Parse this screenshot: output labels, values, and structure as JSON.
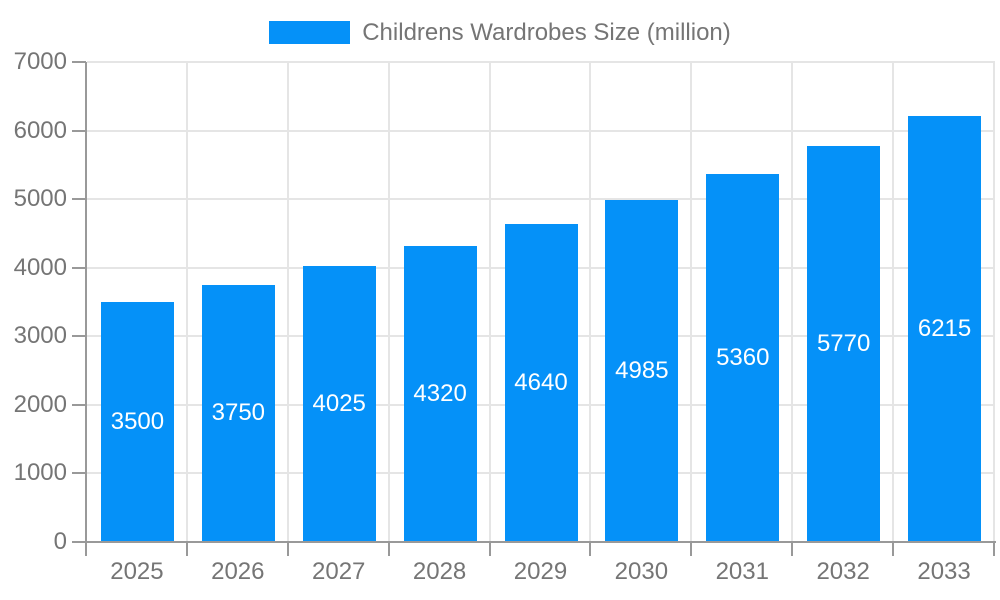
{
  "legend": {
    "label": "Childrens Wardrobes Size (million)"
  },
  "chart_data": {
    "type": "bar",
    "title": "Childrens Wardrobes Size (million)",
    "series_name": "Childrens Wardrobes Size (million)",
    "categories": [
      "2025",
      "2026",
      "2027",
      "2028",
      "2029",
      "2030",
      "2031",
      "2032",
      "2033"
    ],
    "values": [
      3500,
      3750,
      4025,
      4320,
      4640,
      4985,
      5360,
      5770,
      6215
    ],
    "xlabel": "",
    "ylabel": "",
    "ylim": [
      0,
      7000
    ],
    "y_ticks": [
      0,
      1000,
      2000,
      3000,
      4000,
      5000,
      6000,
      7000
    ],
    "grid": true,
    "legend_position": "top",
    "bar_labels_inside": true,
    "colors": {
      "bar": "#0591f8",
      "axis": "#999999",
      "grid": "#e5e5e5",
      "text": "#757575",
      "bar_label": "#ffffff",
      "background": "#ffffff"
    }
  }
}
